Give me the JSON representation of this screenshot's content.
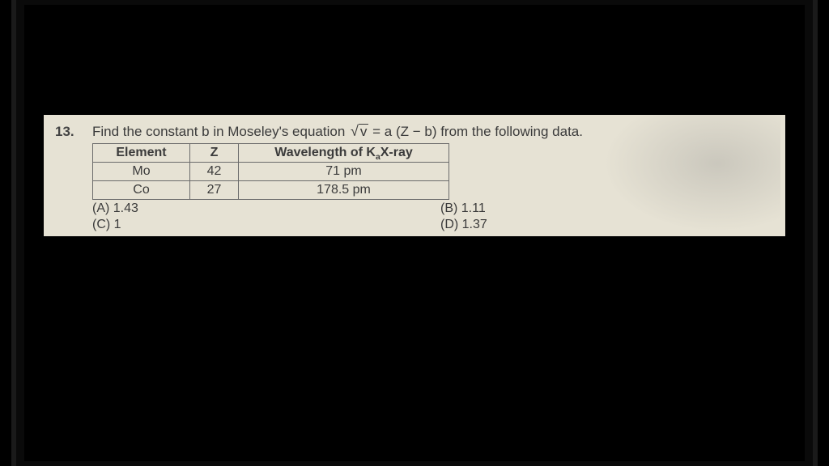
{
  "question": {
    "number": "13.",
    "prompt_prefix": "Find the constant b in Moseley's equation ",
    "sqrt_arg": "v",
    "equals": " = a (Z − b) from the following data."
  },
  "table": {
    "headers": {
      "element": "Element",
      "z": "Z",
      "wavelength_html": "Wavelength of K<span class=\"sub\">a</span>X-ray"
    },
    "rows": [
      {
        "element": "Mo",
        "z": "42",
        "wavelength": "71 pm"
      },
      {
        "element": "Co",
        "z": "27",
        "wavelength": "178.5 pm"
      }
    ]
  },
  "options": {
    "a": "(A) 1.43",
    "b": "(B) 1.11",
    "c": "(C) 1",
    "d": "(D) 1.37"
  },
  "colors": {
    "card_bg": "#e6e2d4",
    "page_bg": "#000000",
    "text": "#3b3b3b",
    "border": "#6b6b6b"
  }
}
